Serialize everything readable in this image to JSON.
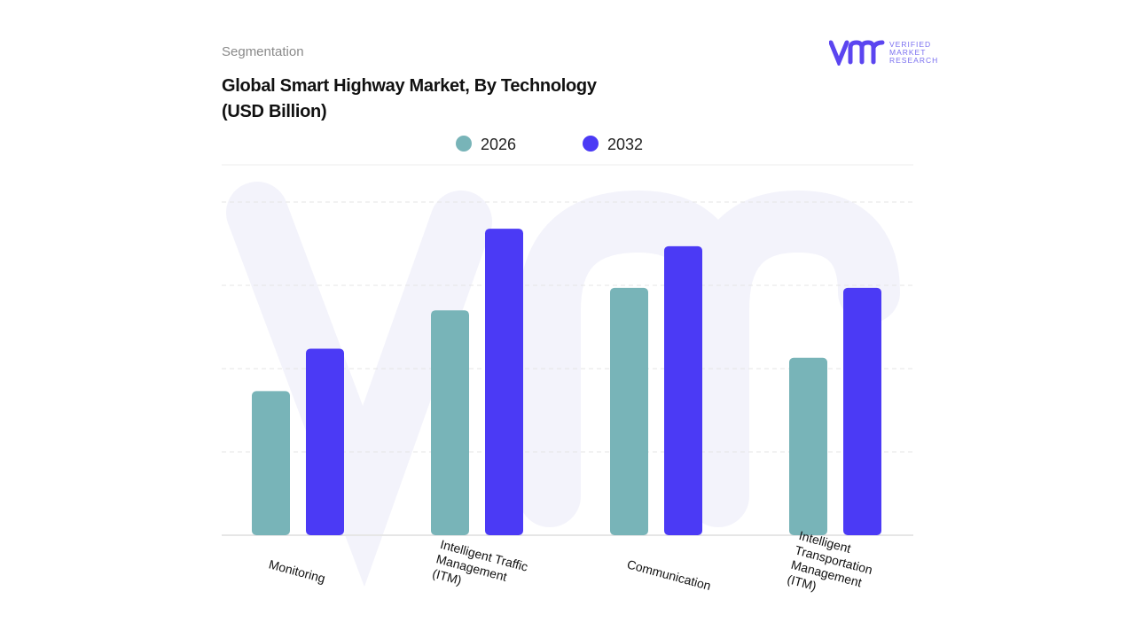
{
  "header": {
    "section": "Segmentation",
    "title_line1": "Global Smart Highway Market, By Technology",
    "title_line2": "(USD Billion)",
    "logo_text": [
      "VERIFIED",
      "MARKET",
      "RESEARCH"
    ]
  },
  "chart_data": {
    "type": "bar",
    "title": "Global Smart Highway Market, By Technology (USD Billion)",
    "xlabel": "",
    "ylabel": "USD Billion",
    "ylim": [
      0,
      4
    ],
    "grid": true,
    "legend_position": "top-center",
    "categories": [
      [
        "Monitoring"
      ],
      [
        "Intelligent Traffic",
        "Management",
        "(ITM)"
      ],
      [
        "Communication"
      ],
      [
        "Intelligent",
        "Transportation",
        "Management",
        "(ITM)"
      ]
    ],
    "series": [
      {
        "name": "2026",
        "color": "#78b4b8",
        "values": [
          1.73,
          2.7,
          2.97,
          2.13
        ]
      },
      {
        "name": "2032",
        "color": "#4b3af5",
        "values": [
          2.24,
          3.68,
          3.47,
          2.97
        ]
      }
    ]
  }
}
